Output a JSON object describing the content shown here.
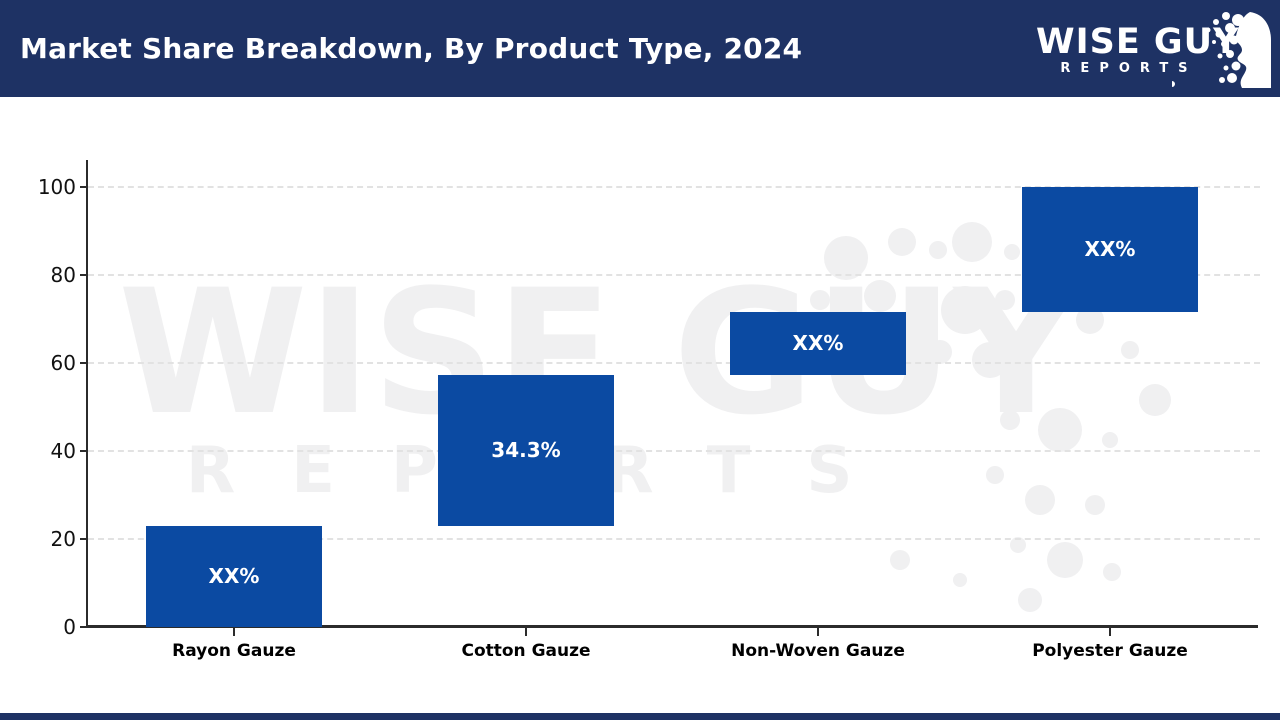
{
  "header": {
    "title": "Market Share Breakdown, By Product Type, 2024",
    "logo": {
      "line1": "WISE GUY",
      "line2": "REPORTS"
    }
  },
  "watermark": {
    "line1": "WISE GUY",
    "line2": "REPORTS"
  },
  "chart_data": {
    "type": "bar",
    "variant": "floating-waterfall",
    "title": "Market Share Breakdown, By Product Type, 2024",
    "categories": [
      "Rayon Gauze",
      "Cotton Gauze",
      "Non-Woven Gauze",
      "Polyester Gauze"
    ],
    "bars": [
      {
        "category": "Rayon Gauze",
        "start": 0,
        "end": 23,
        "height_pct": 23,
        "data_label": "XX%"
      },
      {
        "category": "Cotton Gauze",
        "start": 23,
        "end": 57.3,
        "height_pct": 34.3,
        "data_label": "34.3%"
      },
      {
        "category": "Non-Woven Gauze",
        "start": 57.3,
        "end": 71.6,
        "height_pct": 14.3,
        "data_label": "XX%"
      },
      {
        "category": "Polyester Gauze",
        "start": 71.6,
        "end": 100,
        "height_pct": 28.4,
        "data_label": "XX%"
      }
    ],
    "xlabel": "",
    "ylabel": "",
    "yticks": [
      0,
      20,
      40,
      60,
      80,
      100
    ],
    "ylim": [
      0,
      106
    ],
    "legend": "none",
    "grid": "horizontal dashed",
    "colors": {
      "bar": "#0b4aa2",
      "bar_label": "#ffffff",
      "header_bg": "#1e3264",
      "axis": "#2b2b2b",
      "grid": "#e2e2e2",
      "watermark": "#f0f0f1"
    }
  }
}
